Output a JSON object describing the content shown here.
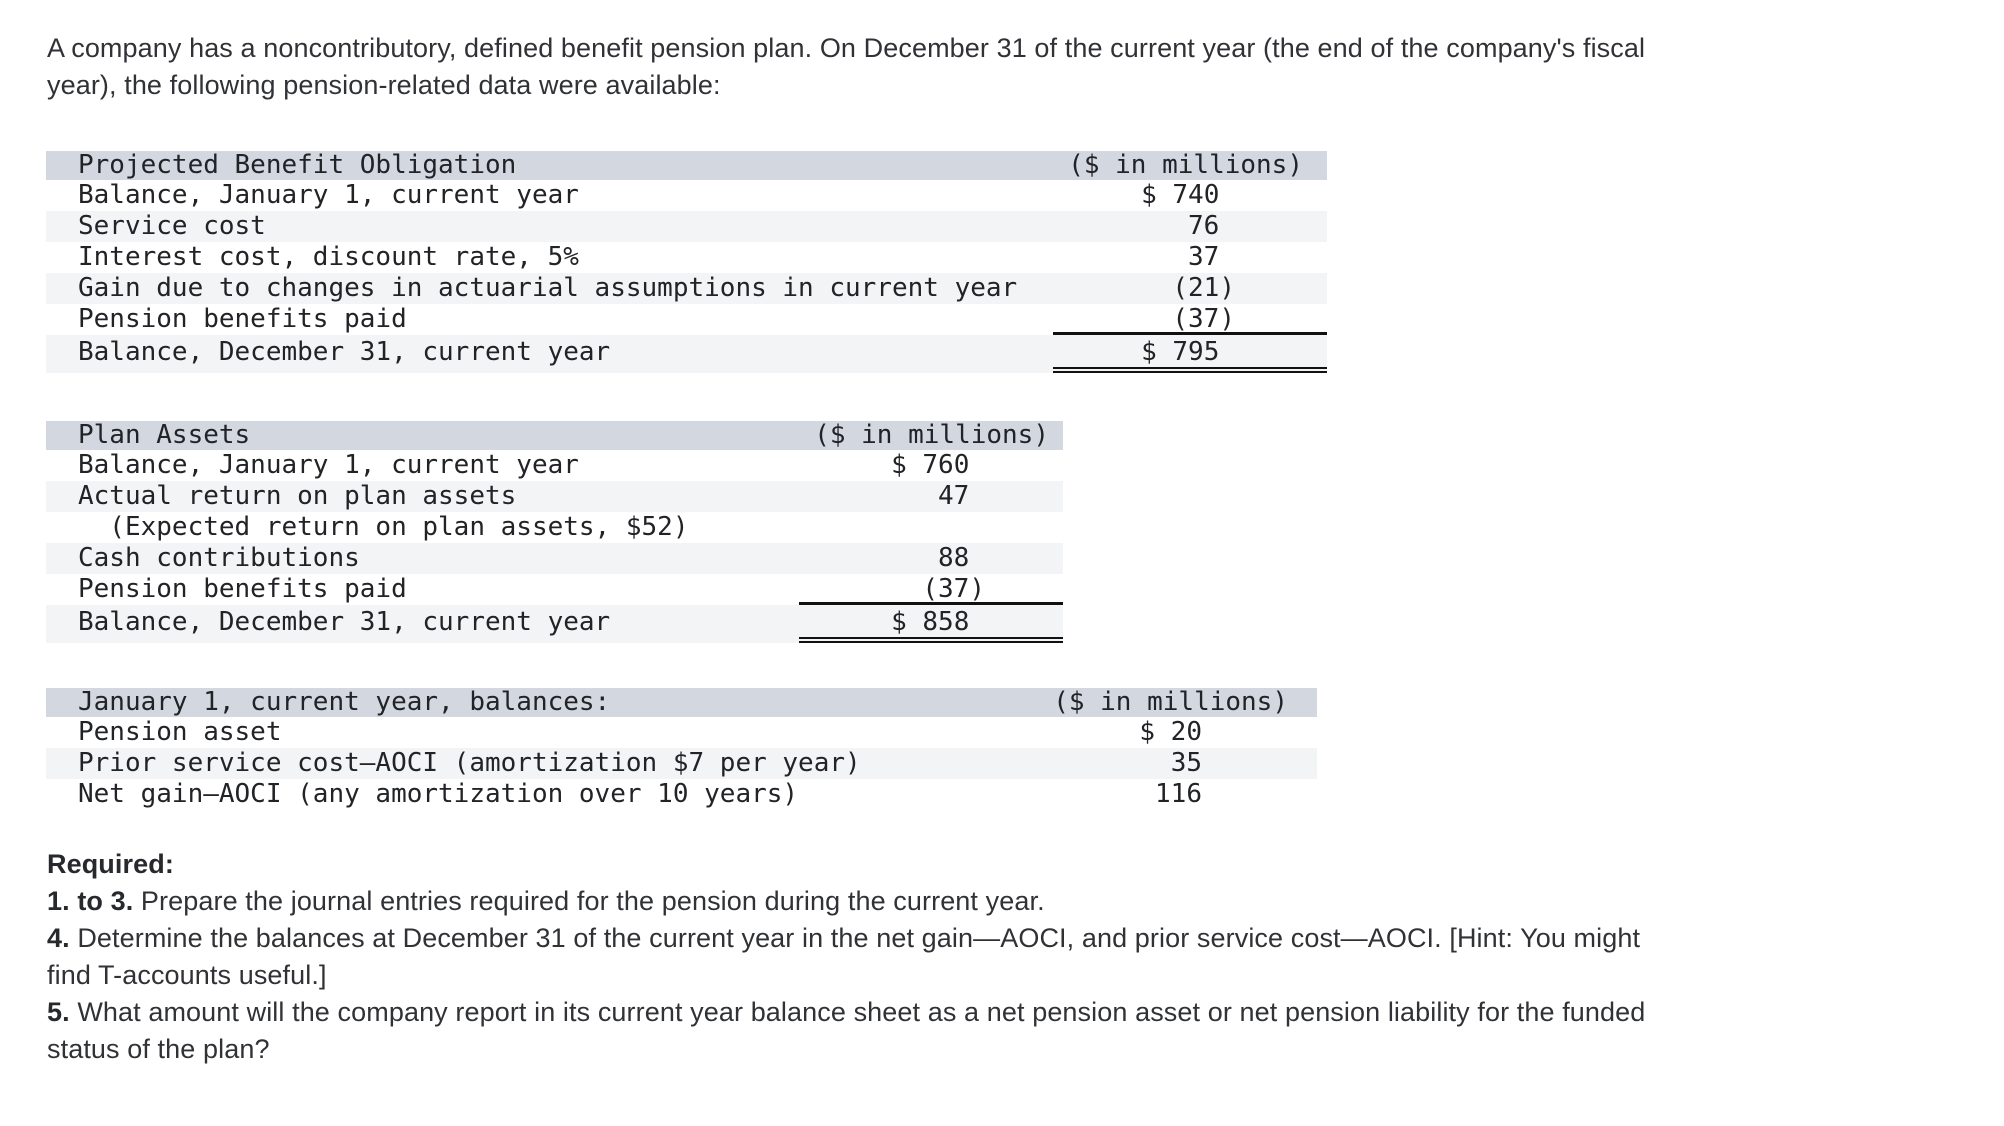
{
  "intro": {
    "lines": [
      "A company has a noncontributory, defined benefit pension plan. On December 31 of the current year (the end of the company's fiscal",
      "year), the following pension-related data were available:"
    ]
  },
  "tables": [
    {
      "title": "Projected Benefit Obligation",
      "unit": "($ in millions)",
      "rows": [
        {
          "label": "Balance, January 1, current year",
          "value": "$ 740 "
        },
        {
          "label": "Service cost",
          "value": "76 "
        },
        {
          "label": "Interest cost, discount rate, 5%",
          "value": "37 "
        },
        {
          "label": "Gain due to changes in actuarial assumptions in current year",
          "value": "(21)"
        },
        {
          "label": "Pension benefits paid",
          "value": "(37)"
        },
        {
          "label": "Balance, December 31, current year",
          "value": "$ 795 "
        }
      ]
    },
    {
      "title": "Plan Assets",
      "unit": "($ in millions)",
      "rows": [
        {
          "label": "Balance, January 1, current year",
          "value": "$ 760 "
        },
        {
          "label": "Actual return on plan assets",
          "value": "47 "
        },
        {
          "label": "  (Expected return on plan assets, $52)",
          "value": ""
        },
        {
          "label": "Cash contributions",
          "value": "88 "
        },
        {
          "label": "Pension benefits paid",
          "value": "(37)"
        },
        {
          "label": "Balance, December 31, current year",
          "value": "$ 858 "
        }
      ]
    },
    {
      "title": "January 1, current year, balances:",
      "unit": "($ in millions)",
      "rows": [
        {
          "label": "Pension asset",
          "value": "$ 20"
        },
        {
          "label": "Prior service cost—AOCI (amortization $7 per year)",
          "value": "35"
        },
        {
          "label": "Net gain—AOCI (any amortization over 10 years)",
          "value": "116"
        }
      ]
    }
  ],
  "required": {
    "heading": "Required:",
    "items": [
      {
        "bold": "1. to 3.",
        "text": " Prepare the journal entries required for the pension during the current year."
      },
      {
        "bold": "4.",
        "text": " Determine the balances at December 31 of the current year in the net gain—AOCI, and prior service cost—AOCI. [Hint: You might"
      },
      {
        "bold": "",
        "text": "find T-accounts useful.]"
      },
      {
        "bold": "5.",
        "text": " What amount will the company report in its current year balance sheet as a net pension asset or net pension liability for the funded"
      },
      {
        "bold": "",
        "text": "status of the plan?"
      }
    ]
  },
  "colors": {
    "header_band": "#d3d7e0",
    "row_stripe": "#f3f4f5",
    "rule_line": "#111111",
    "text": "#2b2d31"
  }
}
